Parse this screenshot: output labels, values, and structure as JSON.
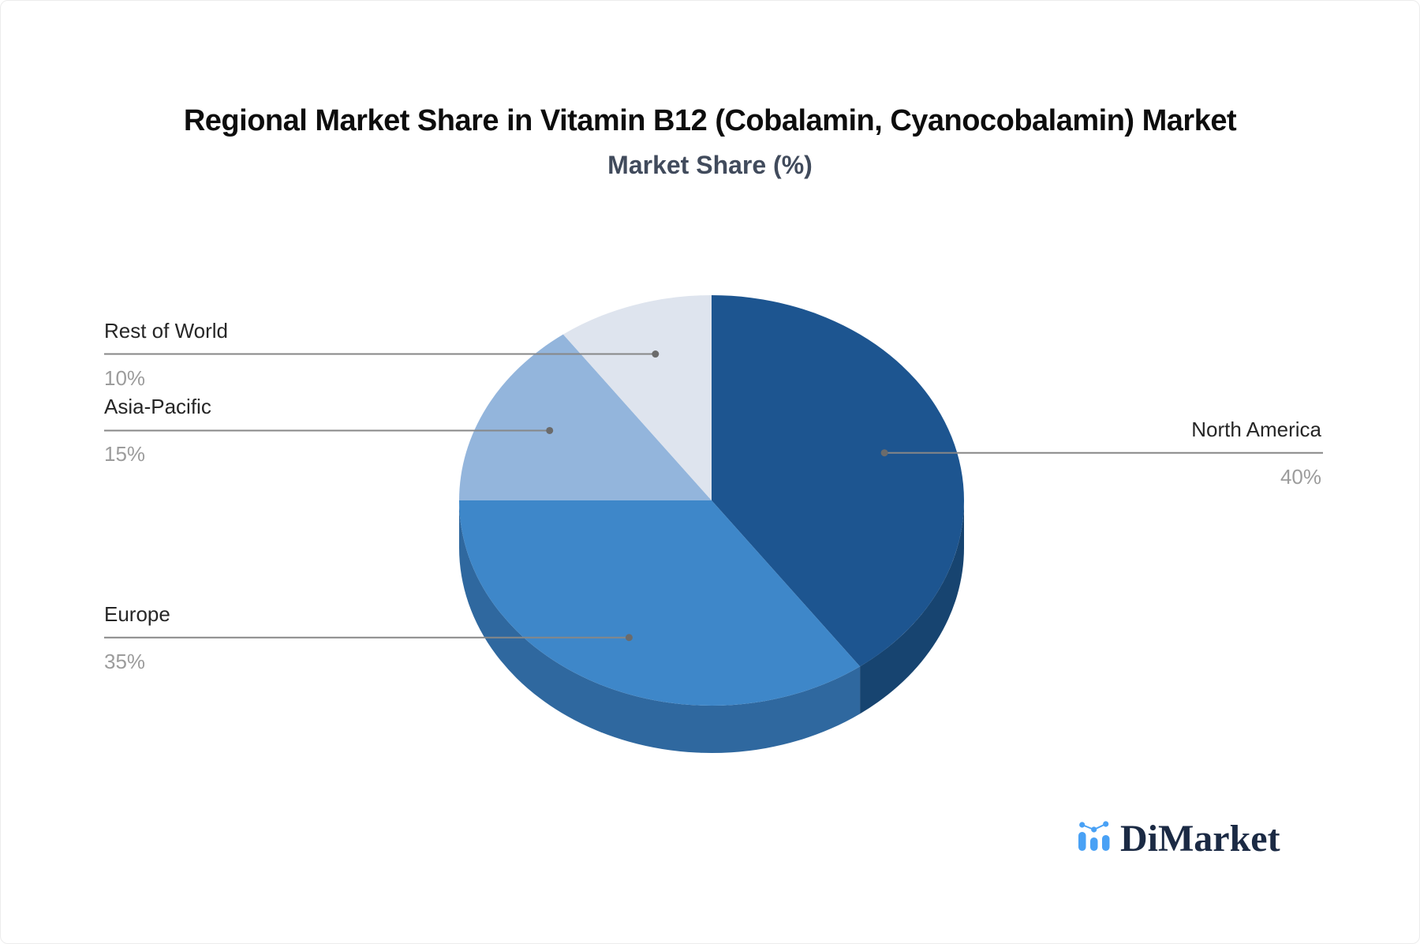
{
  "title": "Regional Market Share in Vitamin B12 (Cobalamin, Cyanocobalamin) Market",
  "subtitle": "Market Share (%)",
  "chart_data": {
    "type": "pie",
    "style": "3d-depth",
    "title": "Regional Market Share in Vitamin B12 (Cobalamin, Cyanocobalamin) Market",
    "subtitle": "Market Share (%)",
    "unit": "%",
    "start_angle": "12-o-clock",
    "direction": "clockwise",
    "legend_position": "callout-labels",
    "slices": [
      {
        "label": "North America",
        "value": 40,
        "value_label": "40%",
        "color": "#1d5590",
        "side_color": "#174470",
        "callout_side": "right"
      },
      {
        "label": "Europe",
        "value": 35,
        "value_label": "35%",
        "color": "#3e87c9",
        "side_color": "#2f689f",
        "callout_side": "left"
      },
      {
        "label": "Asia-Pacific",
        "value": 15,
        "value_label": "15%",
        "color": "#93b5dc",
        "side_color": "#7fa3cc",
        "callout_side": "left"
      },
      {
        "label": "Rest of World",
        "value": 10,
        "value_label": "10%",
        "color": "#dee4ee",
        "side_color": "#c4cdda",
        "callout_side": "left"
      }
    ],
    "callout_line_color": "#878787",
    "callout_dot_color": "#6b6b6b",
    "label_text_color": "#262626",
    "percent_text_color": "#9c9c9c"
  },
  "logo": {
    "text": "DiMarket",
    "icon": "bar-chart-sparkline-icon",
    "text_color": "#1b2a44",
    "icon_color": "#49a1f5"
  }
}
